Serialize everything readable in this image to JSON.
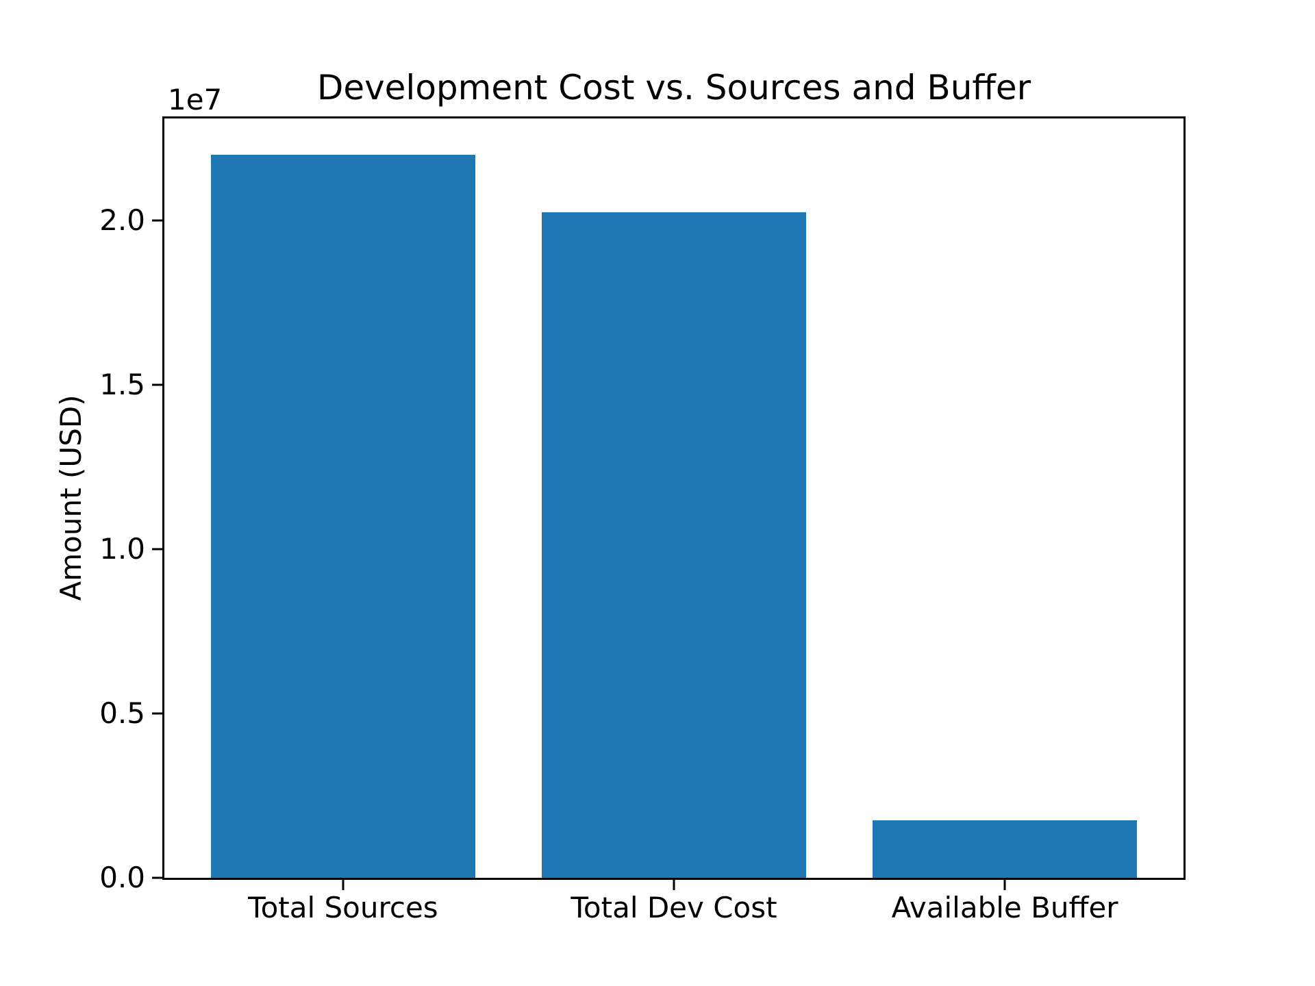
{
  "chart_data": {
    "type": "bar",
    "title": "Development Cost vs. Sources and Buffer",
    "ylabel": "Amount (USD)",
    "xlabel": "",
    "categories": [
      "Total Sources",
      "Total Dev Cost",
      "Available Buffer"
    ],
    "values": [
      22000000,
      20250000,
      1750000
    ],
    "bar_color": "#1f77b4",
    "bar_width": 0.8,
    "xlim": [
      -0.54,
      2.54
    ],
    "ylim": [
      0,
      23100000
    ],
    "yticks": [
      0,
      5000000,
      10000000,
      15000000,
      20000000
    ],
    "ytick_labels": [
      "0.0",
      "0.5",
      "1.0",
      "1.5",
      "2.0"
    ],
    "y_offset_text": "1e7",
    "grid": false,
    "legend": "none",
    "spine_color": "#000000",
    "background_color": "#ffffff"
  }
}
